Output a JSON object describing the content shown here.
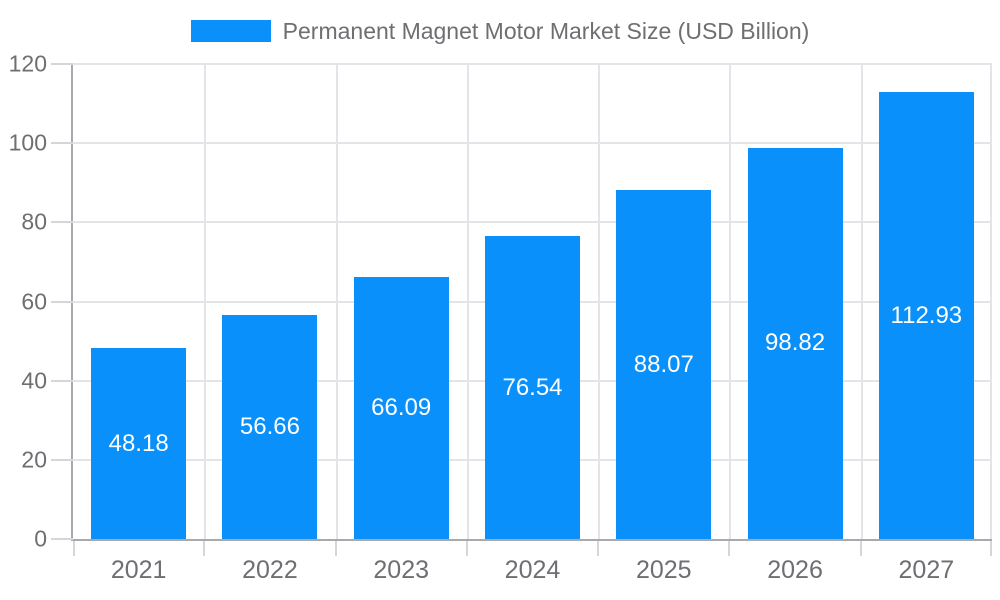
{
  "chart_data": {
    "type": "bar",
    "title": "Permanent Magnet Motor Market Size (USD Billion)",
    "legend": [
      "Permanent Magnet Motor Market Size (USD Billion)"
    ],
    "legend_position": "top-center",
    "categories": [
      "2021",
      "2022",
      "2023",
      "2024",
      "2025",
      "2026",
      "2027"
    ],
    "series": [
      {
        "name": "Permanent Magnet Motor Market Size (USD Billion)",
        "values": [
          48.18,
          56.66,
          66.09,
          76.54,
          88.07,
          98.82,
          112.93
        ]
      }
    ],
    "value_label_decimals": 2,
    "xlabel": "",
    "ylabel": "",
    "ylim": [
      0,
      120
    ],
    "yticks": [
      0,
      20,
      40,
      60,
      80,
      100,
      120
    ],
    "grid": true,
    "bar_width_fraction": 0.72,
    "colors": {
      "bar": "#0990fa",
      "axis_line": "#a9a9ad",
      "grid_line": "#e4e4e8",
      "tick_line": "#d6d6da",
      "axis_text": "#6e6e73",
      "value_label_text": "#ffffff",
      "background": "#ffffff"
    }
  }
}
